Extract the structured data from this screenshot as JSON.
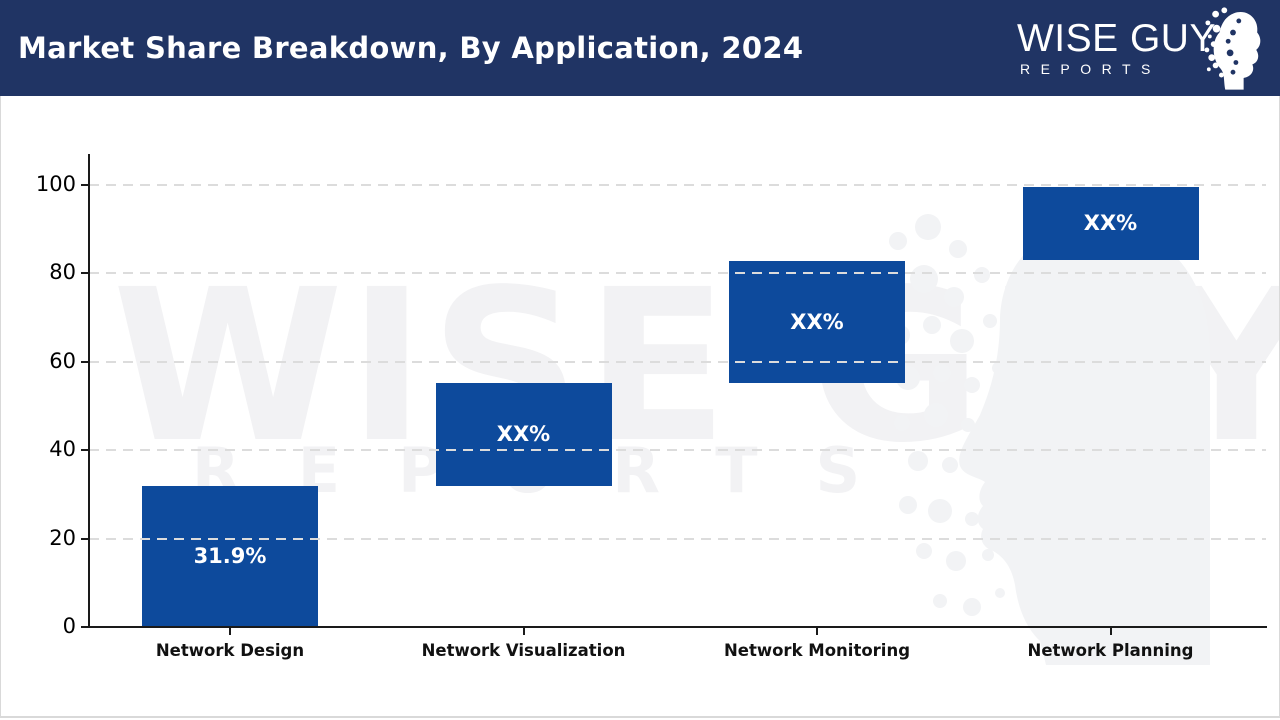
{
  "header": {
    "title": "Market Share Breakdown, By Application, 2024",
    "bg_color": "#203464",
    "logo": {
      "brand_top": "WISE GUY",
      "brand_bottom": "REPORTS",
      "face_icon": "dotted-head-icon"
    }
  },
  "watermark": {
    "line1": "WISE GUY",
    "line2": "REPORTS",
    "color": "#f2f2f4"
  },
  "chart_data": {
    "type": "bar",
    "subtype": "floating-waterfall",
    "title": "Market Share Breakdown, By Application, 2024",
    "xlabel": "",
    "ylabel": "",
    "categories": [
      "Network Design",
      "Network Visualization",
      "Network Monitoring",
      "Network Planning"
    ],
    "bars": [
      {
        "category": "Network Design",
        "start": 0,
        "end": 31.9,
        "label": "31.9%"
      },
      {
        "category": "Network Visualization",
        "start": 31.9,
        "end": 55.2,
        "label": "XX%"
      },
      {
        "category": "Network Monitoring",
        "start": 55.2,
        "end": 82.8,
        "label": "XX%"
      },
      {
        "category": "Network Planning",
        "start": 82.9,
        "end": 99.5,
        "label": "XX%"
      }
    ],
    "yticks": [
      0,
      20,
      40,
      60,
      80,
      100
    ],
    "ylim": [
      0,
      107
    ],
    "grid": "horizontal-dashed-over-bars",
    "grid_color": "#dcdcdc",
    "bar_color": "#0d4a9c",
    "bar_label_color": "#ffffff",
    "axis_color": "#1a1a1a",
    "legend": "none"
  }
}
